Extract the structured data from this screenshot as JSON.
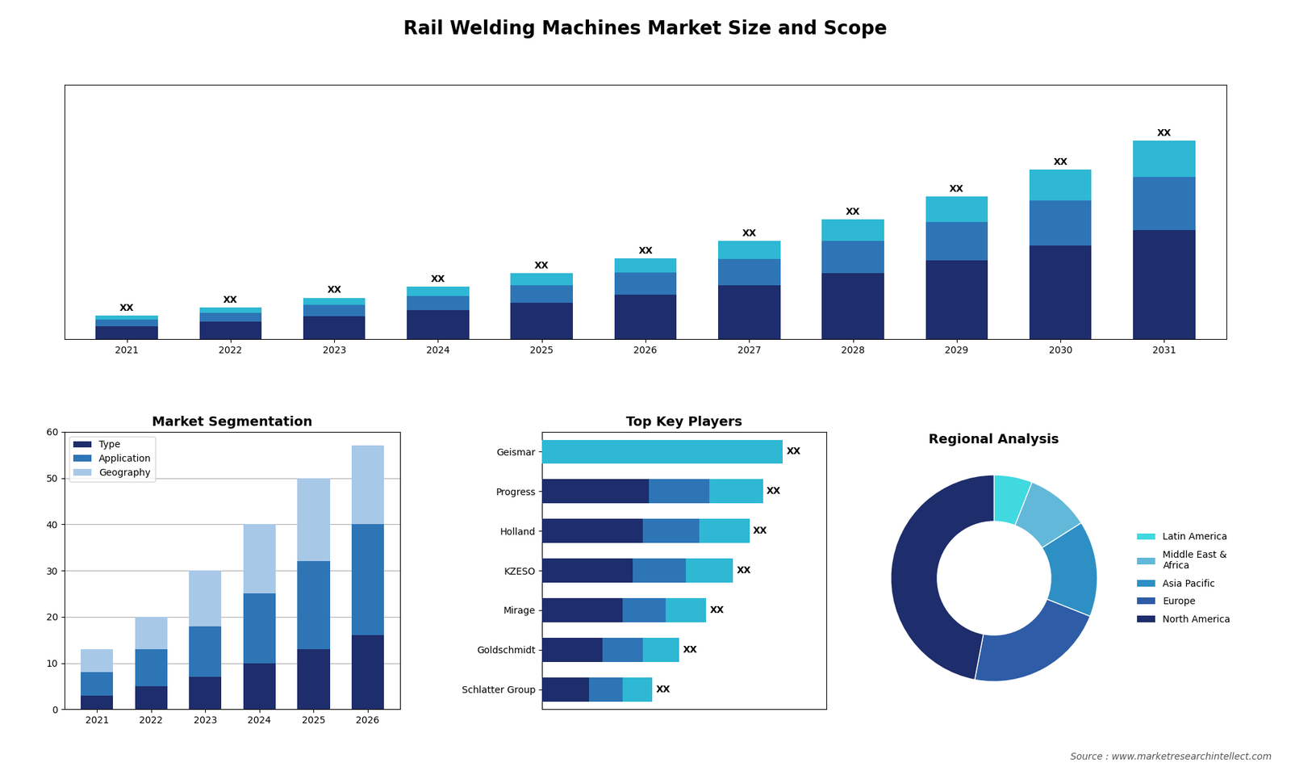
{
  "title": "Rail Welding Machines Market Size and Scope",
  "annotations": [
    "Source : www.marketresearchintellect.com"
  ],
  "chart_data": [
    {
      "type": "bar",
      "stacked": true,
      "categories": [
        "2021",
        "2022",
        "2023",
        "2024",
        "2025",
        "2026",
        "2027",
        "2028",
        "2029",
        "2030",
        "2031"
      ],
      "series": [
        {
          "color": "#1e2d6b",
          "values": [
            1.0,
            1.35,
            1.75,
            2.2,
            2.75,
            3.4,
            4.1,
            5.0,
            6.0,
            7.1,
            8.3
          ]
        },
        {
          "color": "#2e75b6",
          "values": [
            0.5,
            0.65,
            0.85,
            1.1,
            1.35,
            1.65,
            2.0,
            2.45,
            2.9,
            3.45,
            4.05
          ]
        },
        {
          "color": "#2eb8d4",
          "values": [
            0.3,
            0.4,
            0.55,
            0.7,
            0.9,
            1.1,
            1.35,
            1.65,
            1.95,
            2.35,
            2.75
          ]
        }
      ],
      "value_labels": [
        "XX",
        "XX",
        "XX",
        "XX",
        "XX",
        "XX",
        "XX",
        "XX",
        "XX",
        "XX",
        "XX"
      ],
      "ylim": [
        0,
        19.328
      ],
      "tick_labels": "x"
    },
    {
      "type": "bar",
      "title": "Market Segmentation",
      "stacked": true,
      "categories": [
        "2021",
        "2022",
        "2023",
        "2024",
        "2025",
        "2026"
      ],
      "series": [
        {
          "name": "Type",
          "color": "#1e2d6b",
          "values": [
            3,
            5,
            7,
            10,
            13,
            16
          ]
        },
        {
          "name": "Application",
          "color": "#2e75b6",
          "values": [
            5,
            8,
            11,
            15,
            19,
            24
          ]
        },
        {
          "name": "Geography",
          "color": "#a8c8e8",
          "values": [
            5,
            7,
            12,
            15,
            18,
            17
          ]
        }
      ],
      "ylim": [
        0,
        60
      ],
      "yticks": [
        0,
        10,
        20,
        30,
        40,
        50,
        60
      ],
      "grid": true,
      "legend": "upper left"
    },
    {
      "type": "bar",
      "title": "Top Key Players",
      "orientation": "horizontal",
      "stacked": true,
      "categories": [
        "Geismar",
        "Progress",
        "Holland",
        "KZESO",
        "Mirage",
        "Goldschmidt",
        "Schlatter Group"
      ],
      "series": [
        {
          "color": "#1e2d6b",
          "values": [
            0,
            32,
            30,
            27,
            24,
            18,
            14
          ]
        },
        {
          "color": "#2e75b6",
          "values": [
            0,
            18,
            17,
            16,
            13,
            12,
            10
          ]
        },
        {
          "color": "#2eb8d4",
          "values": [
            72,
            16,
            15,
            14,
            12,
            11,
            9
          ]
        }
      ],
      "value_labels": [
        "XX",
        "XX",
        "XX",
        "XX",
        "XX",
        "XX",
        "XX"
      ],
      "xlim": [
        0,
        84.96
      ],
      "tick_labels": "y"
    },
    {
      "type": "donut",
      "title": "Regional Analysis",
      "categories": [
        "Latin America",
        "Middle East &\nAfrica",
        "Asia Pacific",
        "Europe",
        "North America"
      ],
      "values": [
        6,
        10,
        15,
        22,
        47
      ],
      "colors": [
        "#40d9e0",
        "#62b8d8",
        "#2e8fc4",
        "#2e5ca6",
        "#1e2d6b"
      ],
      "legend": "right"
    }
  ]
}
